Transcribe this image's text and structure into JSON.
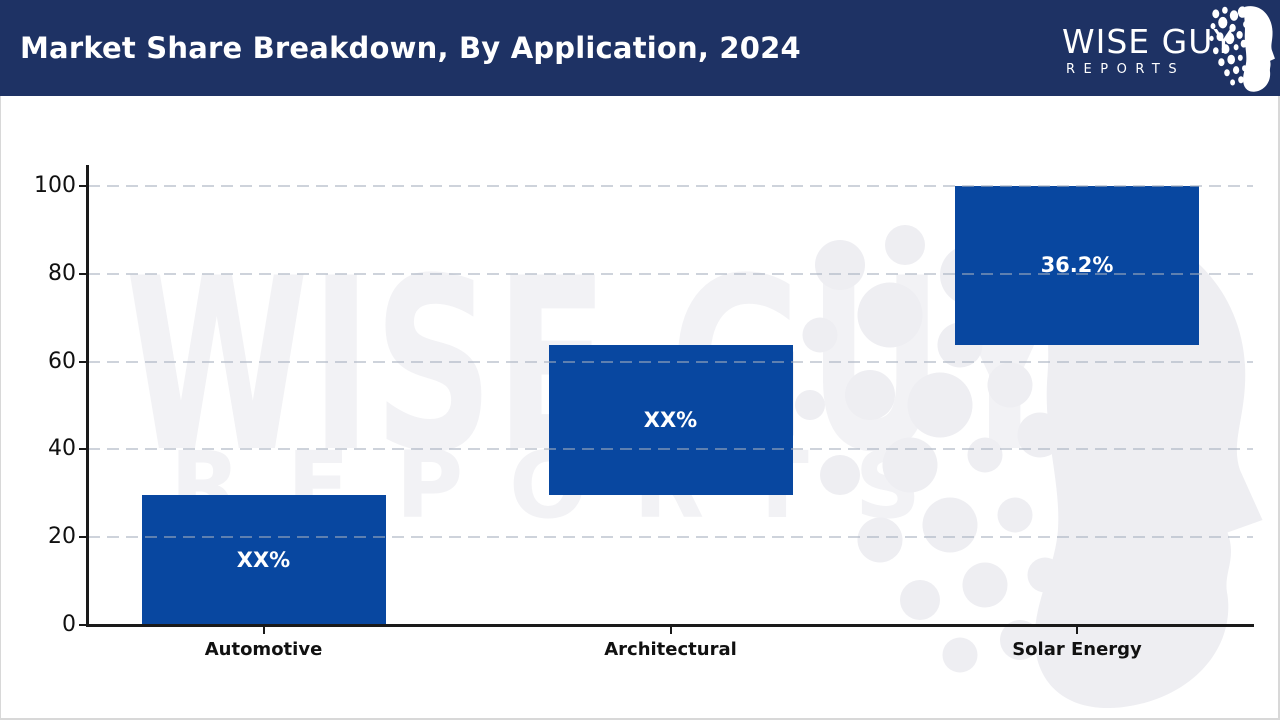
{
  "header": {
    "title": "Market Share Breakdown, By Application, 2024",
    "bg_color": "#1e3264",
    "logo": {
      "line1": "WISE GUY",
      "line2": "REPORTS"
    }
  },
  "watermark": {
    "line1": "WISE GUY",
    "line2": "REPORTS"
  },
  "chart_data": {
    "type": "bar",
    "subtype": "floating-segment percentage bars (waterfall style)",
    "title": "Market Share Breakdown, By Application, 2024",
    "categories": [
      "Automotive",
      "Architectural",
      "Solar Energy"
    ],
    "bars": [
      {
        "category": "Automotive",
        "start": 0,
        "end": 29.6,
        "label": "XX%"
      },
      {
        "category": "Architectural",
        "start": 29.6,
        "end": 63.8,
        "label": "XX%"
      },
      {
        "category": "Solar Energy",
        "start": 63.8,
        "end": 100,
        "label": "36.2%"
      }
    ],
    "ylim": [
      0,
      100
    ],
    "yticks": [
      0,
      20,
      40,
      60,
      80,
      100
    ],
    "xlabel": "",
    "ylabel": "",
    "legend": "none",
    "grid": "horizontal dashed lines drawn above bars",
    "bar_color": "#0847a0",
    "bar_label_color": "#ffffff",
    "axis_color": "#1a1a1a",
    "tick_label_color": "#111111"
  }
}
